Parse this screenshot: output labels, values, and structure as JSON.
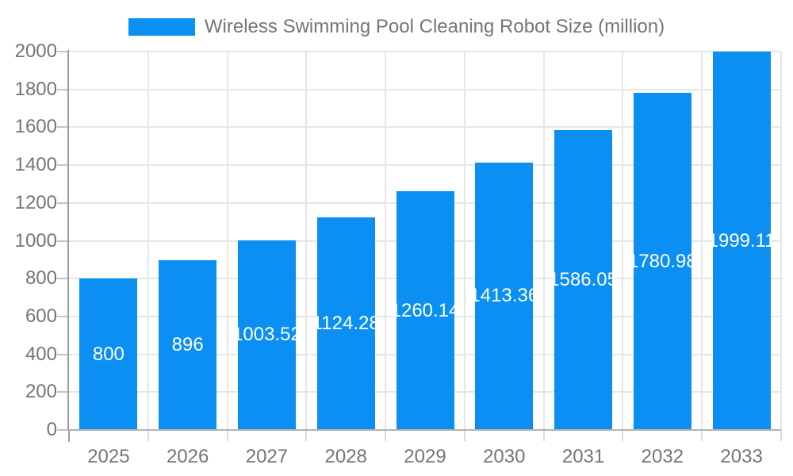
{
  "chart_data": {
    "type": "bar",
    "title": "Wireless Swimming Pool Cleaning Robot Size (million)",
    "categories": [
      "2025",
      "2026",
      "2027",
      "2028",
      "2029",
      "2030",
      "2031",
      "2032",
      "2033"
    ],
    "values": [
      800,
      896,
      1003.52,
      1124.28,
      1260.14,
      1413.36,
      1586.05,
      1780.98,
      1999.11
    ],
    "value_labels": [
      "800",
      "896",
      "1003.52",
      "1124.28",
      "1260.14",
      "1413.36",
      "1586.05",
      "1780.98",
      "1999.11"
    ],
    "ylim": [
      0,
      2000
    ],
    "yticks": [
      0,
      200,
      400,
      600,
      800,
      1000,
      1200,
      1400,
      1600,
      1800,
      2000
    ],
    "ytick_labels": [
      "0",
      "200",
      "400",
      "600",
      "800",
      "1000",
      "1200",
      "1400",
      "1600",
      "1800",
      "2000"
    ],
    "grid": true,
    "legend_position": "top",
    "colors": {
      "bar": "#0b8ff2",
      "bar_label": "#ffffff",
      "axis_text": "#757575",
      "gridline": "#e6e6e6",
      "x_axis_line": "#b3b3b3",
      "y_axis_line": "#9e9e9e"
    }
  }
}
